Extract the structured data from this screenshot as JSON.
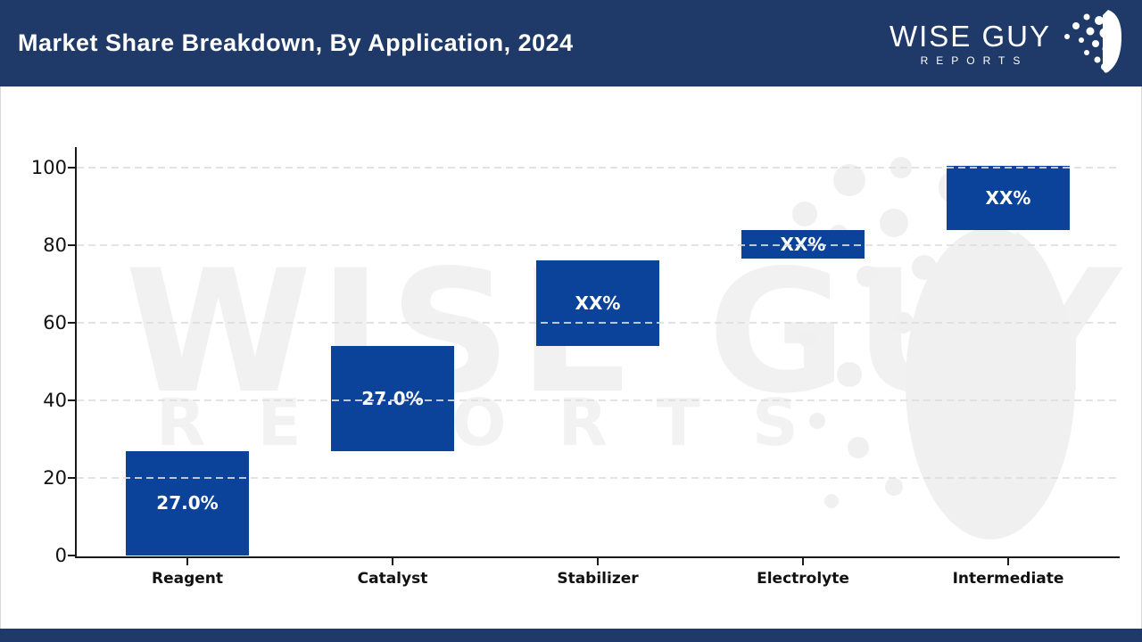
{
  "header": {
    "title": "Market Share Breakdown, By Application, 2024",
    "logo": {
      "line1": "WISE GUY",
      "line2": "REPORTS",
      "icon": "wiseguy-face-logo"
    }
  },
  "watermark": {
    "line1": "WISE GUY",
    "line2": "REPORTS"
  },
  "chart_data": {
    "type": "bar",
    "subtype": "floating-segment waterfall-style column chart",
    "title": "Market Share Breakdown, By Application, 2024",
    "categories": [
      "Reagent",
      "Catalyst",
      "Stabilizer",
      "Electrolyte",
      "Intermediate"
    ],
    "segments": [
      {
        "category": "Reagent",
        "start": 0,
        "end": 27,
        "label": "27.0%"
      },
      {
        "category": "Catalyst",
        "start": 27,
        "end": 54,
        "label": "27.0%"
      },
      {
        "category": "Stabilizer",
        "start": 54,
        "end": 76,
        "label": "XX%"
      },
      {
        "category": "Electrolyte",
        "start": 76.5,
        "end": 84,
        "label": "XX%"
      },
      {
        "category": "Intermediate",
        "start": 84,
        "end": 100.5,
        "label": "XX%"
      }
    ],
    "xlabel": "",
    "ylabel": "",
    "yticks": [
      0,
      20,
      40,
      60,
      80,
      100
    ],
    "ylim": [
      0,
      106
    ],
    "grid": "horizontal dashed, drawn over bars",
    "legend": "none",
    "bar_color": "#0a4399",
    "bar_label_color": "#ffffff"
  },
  "colors": {
    "header_bg": "#1f3a68",
    "footer_bg": "#1f3a68",
    "bar": "#0a4399",
    "axis": "#1a1a1a",
    "grid": "#dedede",
    "watermark": "#f1f1f1"
  }
}
